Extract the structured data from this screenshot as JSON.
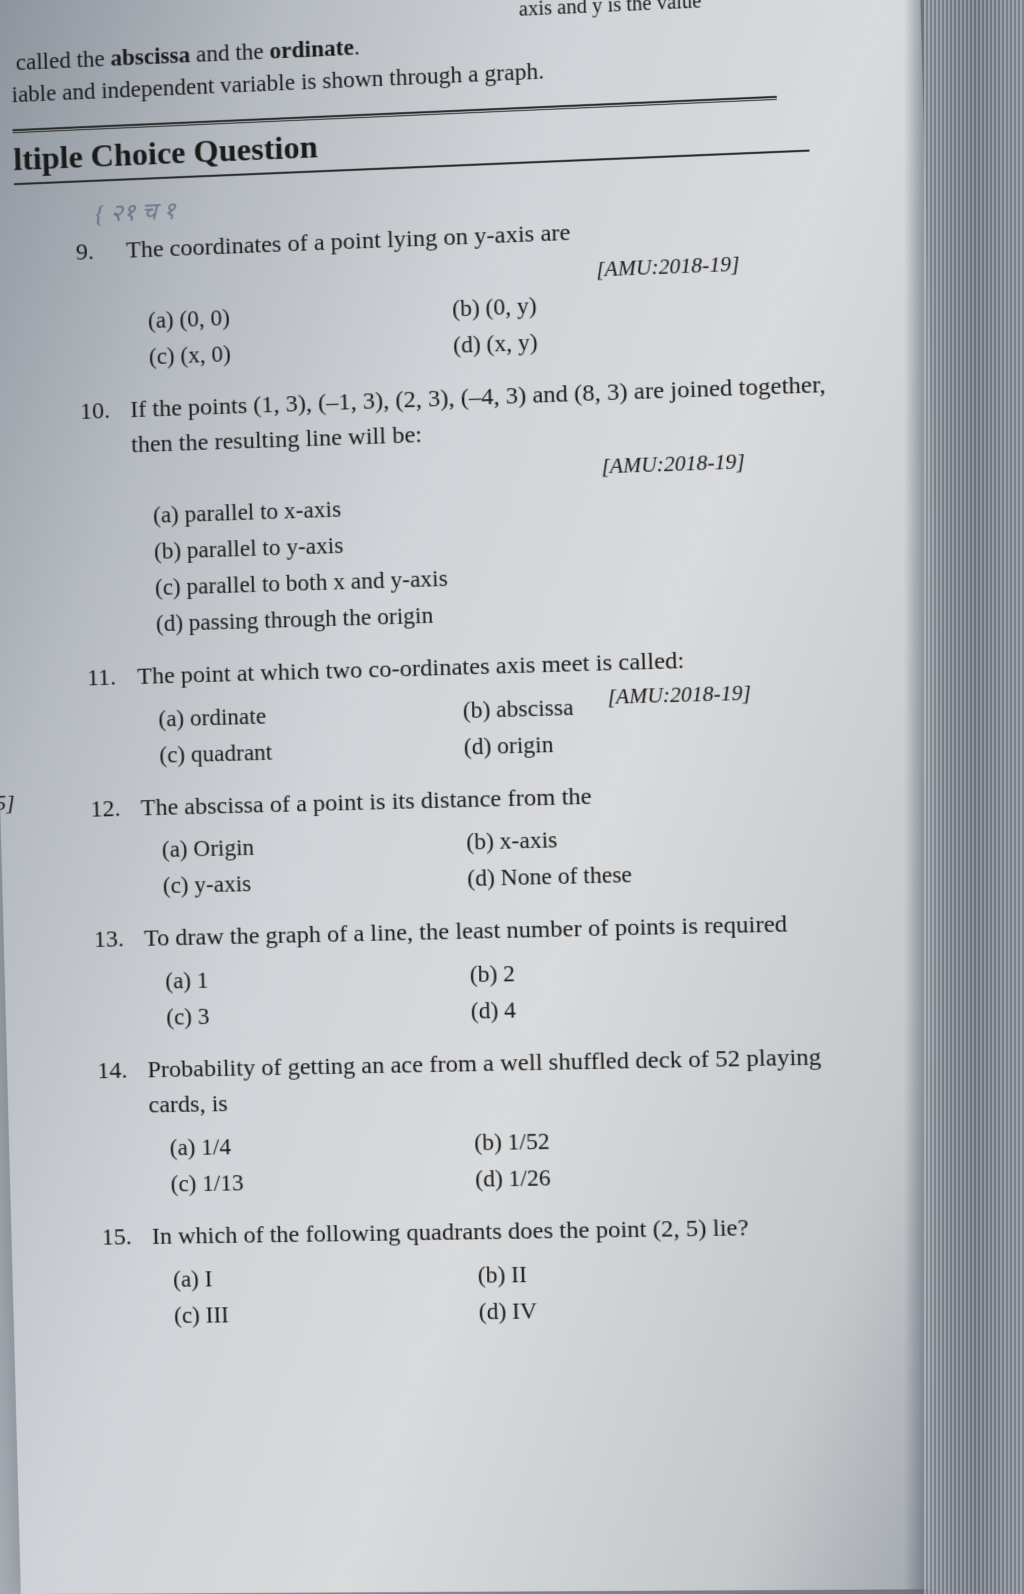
{
  "intro": {
    "line1_partial": "axis and y is the value",
    "line2": "called the abscissa and the ordinate.",
    "line3": "iable and independent variable is shown through a graph."
  },
  "section_title": "ltiple Choice Question",
  "handwritten_mark": "{ २१ च १",
  "side_label": "5]",
  "questions": [
    {
      "num": "9.",
      "text": "The coordinates of a point lying on y-axis are",
      "tag": "[AMU:2018-19]",
      "tag_position": "below",
      "layout": "two-col",
      "options": [
        {
          "label": "(a)",
          "text": "(0, 0)"
        },
        {
          "label": "(b)",
          "text": "(0, y)"
        },
        {
          "label": "(c)",
          "text": "(x, 0)"
        },
        {
          "label": "(d)",
          "text": "(x, y)"
        }
      ]
    },
    {
      "num": "10.",
      "text": "If the points (1, 3), (–1, 3), (2, 3), (–4, 3) and (8, 3) are joined together, then the resulting line will be:",
      "tag": "[AMU:2018-19]",
      "tag_position": "below",
      "layout": "single-col",
      "options": [
        {
          "label": "(a)",
          "text": "parallel to x-axis"
        },
        {
          "label": "(b)",
          "text": "parallel to y-axis"
        },
        {
          "label": "(c)",
          "text": "parallel to both x and y-axis"
        },
        {
          "label": "(d)",
          "text": "passing through the origin"
        }
      ]
    },
    {
      "num": "11.",
      "text": "The point at which two co-ordinates axis meet is called:",
      "tag": "[AMU:2018-19]",
      "tag_position": "inline",
      "layout": "two-col",
      "options": [
        {
          "label": "(a)",
          "text": "ordinate"
        },
        {
          "label": "(b)",
          "text": "abscissa"
        },
        {
          "label": "(c)",
          "text": "quadrant"
        },
        {
          "label": "(d)",
          "text": "origin"
        }
      ]
    },
    {
      "num": "12.",
      "text": "The abscissa of a point is its distance from the",
      "tag": "",
      "layout": "two-col",
      "options": [
        {
          "label": "(a)",
          "text": "Origin"
        },
        {
          "label": "(b)",
          "text": "x-axis"
        },
        {
          "label": "(c)",
          "text": "y-axis"
        },
        {
          "label": "(d)",
          "text": "None of these"
        }
      ]
    },
    {
      "num": "13.",
      "text": "To draw the graph of a line, the least number of points is required",
      "tag": "",
      "layout": "two-col",
      "options": [
        {
          "label": "(a)",
          "text": "1"
        },
        {
          "label": "(b)",
          "text": "2"
        },
        {
          "label": "(c)",
          "text": "3"
        },
        {
          "label": "(d)",
          "text": "4"
        }
      ]
    },
    {
      "num": "14.",
      "text": "Probability of getting an ace from a well shuffled deck of 52 playing cards, is",
      "tag": "",
      "layout": "two-col",
      "options": [
        {
          "label": "(a)",
          "text": "1/4"
        },
        {
          "label": "(b)",
          "text": "1/52"
        },
        {
          "label": "(c)",
          "text": "1/13"
        },
        {
          "label": "(d)",
          "text": "1/26"
        }
      ]
    },
    {
      "num": "15.",
      "text": "In which of the following quadrants does the point (2, 5) lie?",
      "tag": "",
      "layout": "two-col",
      "options": [
        {
          "label": "(a)",
          "text": "I"
        },
        {
          "label": "(b)",
          "text": "II"
        },
        {
          "label": "(c)",
          "text": "III"
        },
        {
          "label": "(d)",
          "text": "IV"
        }
      ]
    }
  ]
}
